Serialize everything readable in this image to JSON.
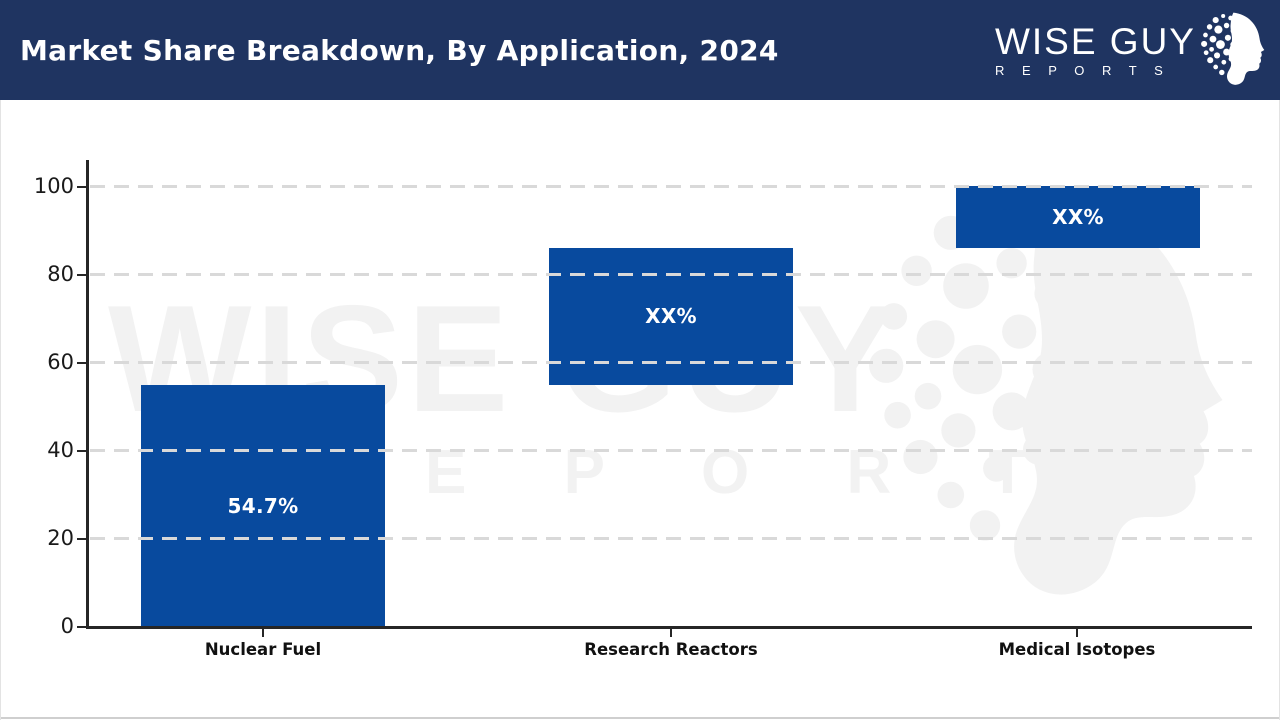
{
  "header": {
    "title": "Market Share Breakdown, By Application, 2024",
    "logo": {
      "line1": "WISE GUY",
      "line2": "R E P O R T S"
    }
  },
  "watermark": {
    "line1": "WISE GUY",
    "line2": "R E P O R T S"
  },
  "colors": {
    "header_bg": "#1f3461",
    "bar_blue": "#084a9e",
    "grid": "#d9d9d9",
    "axis": "#262626",
    "watermark": "#f2f2f2",
    "title_text": "#ffffff",
    "bar_label_text": "#ffffff"
  },
  "chart_data": {
    "type": "bar",
    "variant": "stepped-waterfall",
    "title": "Market Share Breakdown, By Application, 2024",
    "categories": [
      "Nuclear Fuel",
      "Research Reactors",
      "Medical Isotopes"
    ],
    "segments": [
      {
        "category": "Nuclear Fuel",
        "start": 0,
        "end": 54.7,
        "label": "54.7%"
      },
      {
        "category": "Research Reactors",
        "start": 54.7,
        "end": 86,
        "label": "XX%"
      },
      {
        "category": "Medical Isotopes",
        "start": 86,
        "end": 100,
        "label": "XX%"
      }
    ],
    "value_labels": [
      "54.7%",
      "XX%",
      "XX%"
    ],
    "yticks": [
      0,
      20,
      40,
      60,
      80,
      100
    ],
    "ylim": [
      0,
      105
    ],
    "xlabel": "",
    "ylabel": "",
    "grid": "horizontal-dashed",
    "legend": "none",
    "bar_color": "#084a9e"
  }
}
